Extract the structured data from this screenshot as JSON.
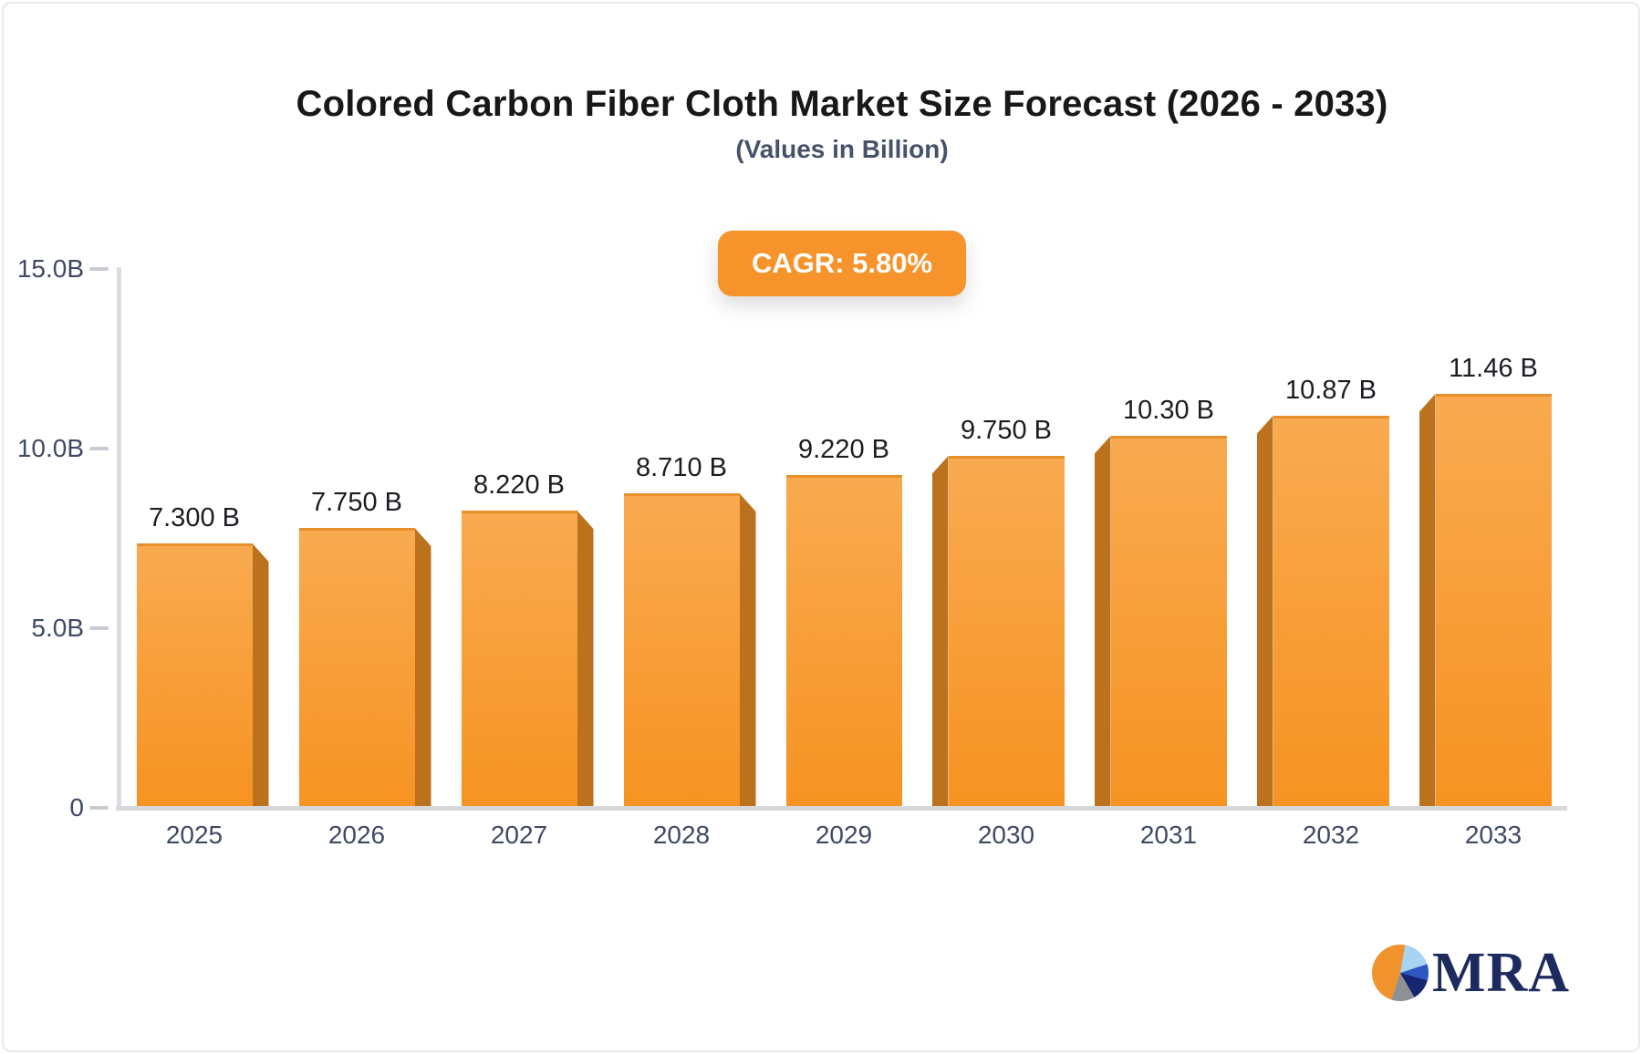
{
  "chart_data": {
    "type": "bar",
    "title": "Colored Carbon Fiber Cloth Market Size Forecast (2026 - 2033)",
    "subtitle": "(Values in Billion)",
    "cagr_label": "CAGR: 5.80%",
    "categories": [
      "2025",
      "2026",
      "2027",
      "2028",
      "2029",
      "2030",
      "2031",
      "2032",
      "2033"
    ],
    "values": [
      7.3,
      7.75,
      8.22,
      8.71,
      9.22,
      9.75,
      10.3,
      10.87,
      11.46
    ],
    "value_labels": [
      "7.300 B",
      "7.750 B",
      "8.220 B",
      "8.710 B",
      "9.220 B",
      "9.750 B",
      "10.30 B",
      "10.87 B",
      "11.46 B"
    ],
    "xlabel": "",
    "ylabel": "",
    "ylim": [
      0,
      15
    ],
    "yticks": [
      {
        "value": 0,
        "label": "0"
      },
      {
        "value": 5,
        "label": "5.0B"
      },
      {
        "value": 10,
        "label": "10.0B"
      },
      {
        "value": 15,
        "label": "15.0B"
      }
    ],
    "grid": false,
    "legend": "none",
    "colors": {
      "bar_top": "#f9aa50",
      "bar_bottom": "#f69322",
      "bar_side": "#bc721c",
      "badge_bg": "#f6932b",
      "badge_text": "#ffffff",
      "axis_text": "#3e4a64",
      "value_text": "#1a1d21",
      "title_text": "#181818",
      "subtitle_text": "#46526c"
    }
  },
  "logo": {
    "text": "MRA",
    "pie_colors": [
      "#f0932c",
      "#a9d3f2",
      "#2f55c2",
      "#17246e",
      "#8d9095"
    ]
  }
}
